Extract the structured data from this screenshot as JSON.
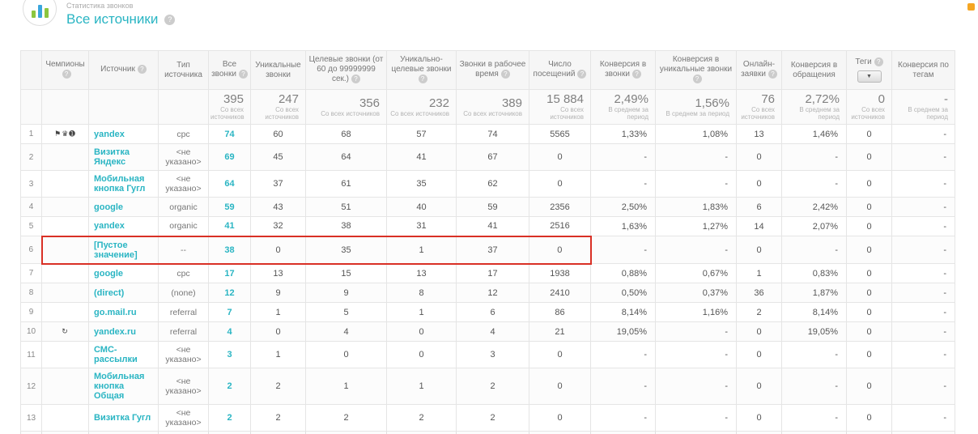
{
  "header": {
    "breadcrumb": "Статистика звонков",
    "title": "Все источники"
  },
  "icons": {
    "flag-icon": "⚑",
    "cup-icon": "♛",
    "medal-icon": "➊",
    "refresh-icon": "↻",
    "help-glyph": "?",
    "dropdown-caret": "▼"
  },
  "colors": {
    "accent": "#2ab5c3",
    "highlight": "#d93025",
    "header_bg": "#f6f6f6",
    "border": "#e5e5e5"
  },
  "table": {
    "columns": [
      {
        "key": "champions",
        "label": "Чемпионы",
        "help": true
      },
      {
        "key": "source",
        "label": "Источник",
        "help": true
      },
      {
        "key": "source-type",
        "label": "Тип источника",
        "help": false
      },
      {
        "key": "all-calls",
        "label": "Все звонки",
        "help": true
      },
      {
        "key": "unique-calls",
        "label": "Уникальные звонки",
        "help": false
      },
      {
        "key": "target-calls",
        "label": "Целевые звонки (от 60 до 99999999 сек.)",
        "help": true
      },
      {
        "key": "unique-target-calls",
        "label": "Уникально-целевые звонки",
        "help": true
      },
      {
        "key": "work-hours-calls",
        "label": "Звонки в рабочее время",
        "help": true
      },
      {
        "key": "visits",
        "label": "Число посещений",
        "help": true
      },
      {
        "key": "conv-calls",
        "label": "Конверсия в звонки",
        "help": true
      },
      {
        "key": "conv-unique-calls",
        "label": "Конверсия в уникальные звонки",
        "help": true
      },
      {
        "key": "online-requests",
        "label": "Онлайн-заявки",
        "help": true
      },
      {
        "key": "conv-inquiries",
        "label": "Конверсия в обращения",
        "help": false
      },
      {
        "key": "tags",
        "label": "Теги",
        "help": true,
        "dropdown": true
      },
      {
        "key": "conv-tags",
        "label": "Конверсия по тегам",
        "help": false
      }
    ],
    "summary": [
      {
        "value": "395",
        "caption": "Со всех источников"
      },
      {
        "value": "247",
        "caption": "Со всех источников"
      },
      {
        "value": "356",
        "caption": "Со всех источников"
      },
      {
        "value": "232",
        "caption": "Со всех источников"
      },
      {
        "value": "389",
        "caption": "Со всех источников"
      },
      {
        "value": "15 884",
        "caption": "Со всех источников"
      },
      {
        "value": "2,49%",
        "caption": "В среднем за период"
      },
      {
        "value": "1,56%",
        "caption": "В среднем за период"
      },
      {
        "value": "76",
        "caption": "Со всех источников"
      },
      {
        "value": "2,72%",
        "caption": "В среднем за период"
      },
      {
        "value": "0",
        "caption": "Со всех источников"
      },
      {
        "value": "-",
        "caption": "В среднем за период"
      }
    ],
    "rows": [
      {
        "num": "1",
        "champions": [
          "flag-icon",
          "cup-icon",
          "medal-icon"
        ],
        "source": "yandex",
        "type": "cpc",
        "values": [
          "74",
          "60",
          "68",
          "57",
          "74",
          "5565",
          "1,33%",
          "1,08%",
          "13",
          "1,46%",
          "0",
          "-"
        ]
      },
      {
        "num": "2",
        "champions": [],
        "source": "Визитка Яндекс",
        "type": "<не указано>",
        "values": [
          "69",
          "45",
          "64",
          "41",
          "67",
          "0",
          "-",
          "-",
          "0",
          "-",
          "0",
          "-"
        ]
      },
      {
        "num": "3",
        "champions": [],
        "source": "Мобильная кнопка Гугл",
        "type": "<не указано>",
        "values": [
          "64",
          "37",
          "61",
          "35",
          "62",
          "0",
          "-",
          "-",
          "0",
          "-",
          "0",
          "-"
        ]
      },
      {
        "num": "4",
        "champions": [],
        "source": "google",
        "type": "organic",
        "values": [
          "59",
          "43",
          "51",
          "40",
          "59",
          "2356",
          "2,50%",
          "1,83%",
          "6",
          "2,42%",
          "0",
          "-"
        ]
      },
      {
        "num": "5",
        "champions": [],
        "source": "yandex",
        "type": "organic",
        "values": [
          "41",
          "32",
          "38",
          "31",
          "41",
          "2516",
          "1,63%",
          "1,27%",
          "14",
          "2,07%",
          "0",
          "-"
        ]
      },
      {
        "num": "6",
        "champions": [],
        "source": "[Пустое значение]",
        "type": "--",
        "values": [
          "38",
          "0",
          "35",
          "1",
          "37",
          "0",
          "-",
          "-",
          "0",
          "-",
          "0",
          "-"
        ],
        "highlighted": true
      },
      {
        "num": "7",
        "champions": [],
        "source": "google",
        "type": "cpc",
        "values": [
          "17",
          "13",
          "15",
          "13",
          "17",
          "1938",
          "0,88%",
          "0,67%",
          "1",
          "0,83%",
          "0",
          "-"
        ]
      },
      {
        "num": "8",
        "champions": [],
        "source": "(direct)",
        "type": "(none)",
        "values": [
          "12",
          "9",
          "9",
          "8",
          "12",
          "2410",
          "0,50%",
          "0,37%",
          "36",
          "1,87%",
          "0",
          "-"
        ]
      },
      {
        "num": "9",
        "champions": [],
        "source": "go.mail.ru",
        "type": "referral",
        "values": [
          "7",
          "1",
          "5",
          "1",
          "6",
          "86",
          "8,14%",
          "1,16%",
          "2",
          "8,14%",
          "0",
          "-"
        ]
      },
      {
        "num": "10",
        "champions": [
          "refresh-icon"
        ],
        "source": "yandex.ru",
        "type": "referral",
        "values": [
          "4",
          "0",
          "4",
          "0",
          "4",
          "21",
          "19,05%",
          "-",
          "0",
          "19,05%",
          "0",
          "-"
        ]
      },
      {
        "num": "11",
        "champions": [],
        "source": "СМС-рассылки",
        "type": "<не указано>",
        "values": [
          "3",
          "1",
          "0",
          "0",
          "3",
          "0",
          "-",
          "-",
          "0",
          "-",
          "0",
          "-"
        ]
      },
      {
        "num": "12",
        "champions": [],
        "source": "Мобильная кнопка Общая",
        "type": "<не указано>",
        "values": [
          "2",
          "2",
          "1",
          "1",
          "2",
          "0",
          "-",
          "-",
          "0",
          "-",
          "0",
          "-"
        ]
      },
      {
        "num": "13",
        "champions": [],
        "source": "Визитка Гугл",
        "type": "<не указано>",
        "values": [
          "2",
          "2",
          "2",
          "2",
          "2",
          "0",
          "-",
          "-",
          "0",
          "-",
          "0",
          "-"
        ]
      }
    ]
  }
}
